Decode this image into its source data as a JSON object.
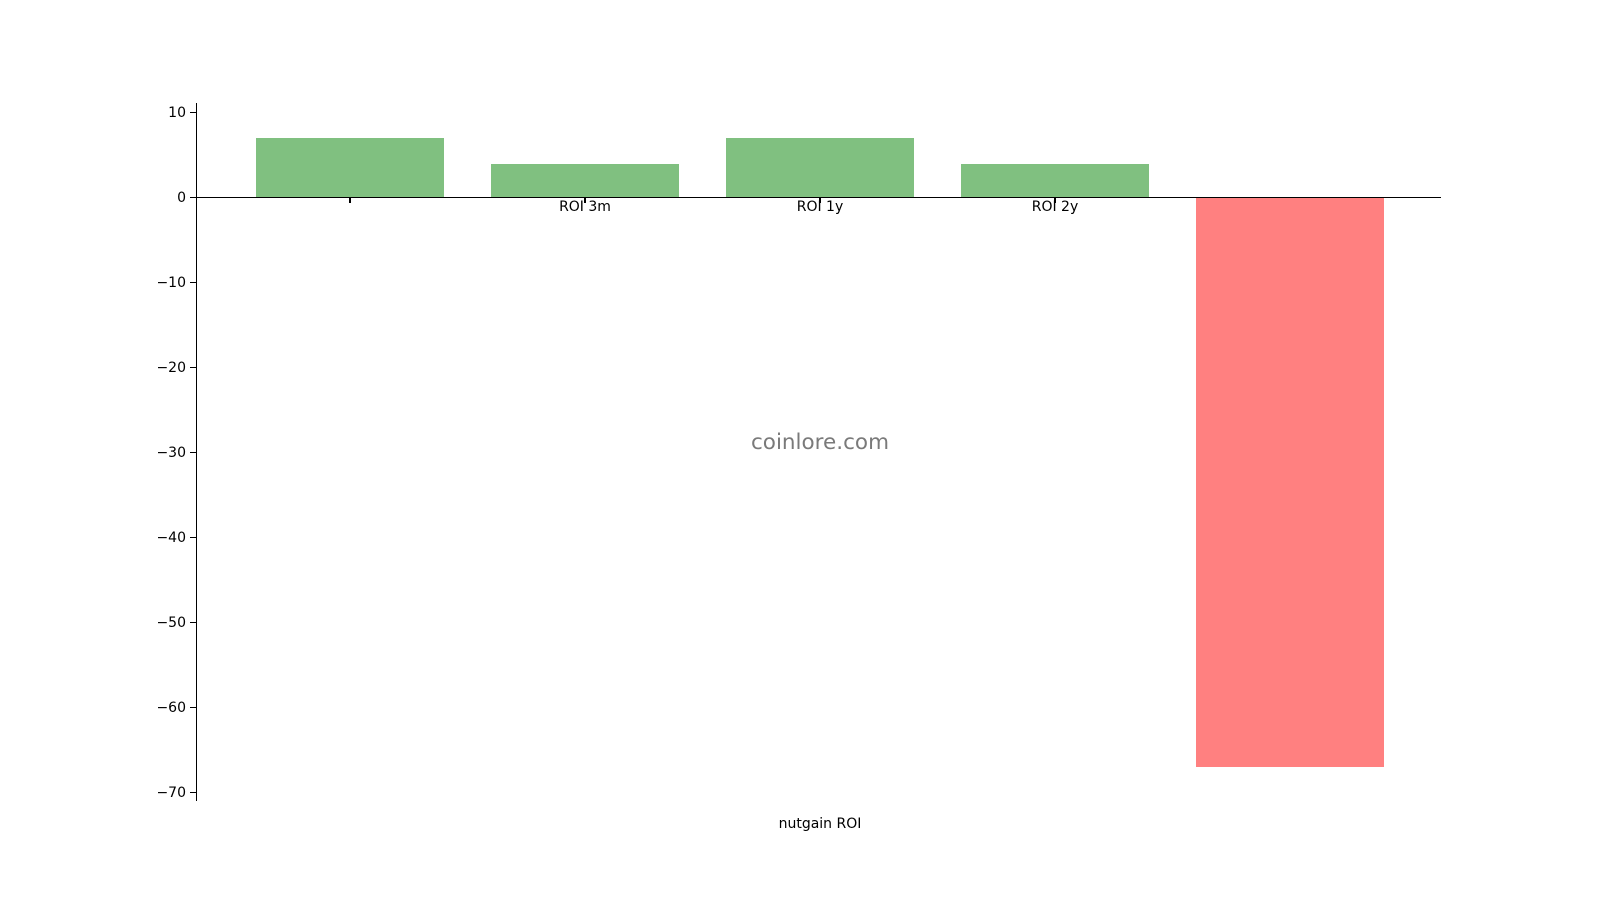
{
  "watermark": {
    "text": "coinlore.com",
    "color": "#7a7a7a"
  },
  "chart_data": {
    "type": "bar",
    "title": "",
    "xlabel": "nutgain ROI",
    "ylabel": "",
    "categories": [
      "",
      "ROI 3m",
      "ROI 1y",
      "ROI 2y",
      ""
    ],
    "values": [
      7,
      3.9,
      7,
      3.9,
      -67
    ],
    "bar_colors": [
      "#80c080",
      "#80c080",
      "#80c080",
      "#80c080",
      "#ff8080"
    ],
    "positive_color": "#80c080",
    "negative_color": "#ff8080",
    "ylim": [
      -71,
      11.2
    ],
    "yticks": [
      10,
      0,
      -10,
      -20,
      -30,
      -40,
      -50,
      -60,
      -70
    ],
    "grid": false,
    "legend": "none",
    "axis_color": "#000000",
    "tick_label_color": "#000000"
  }
}
